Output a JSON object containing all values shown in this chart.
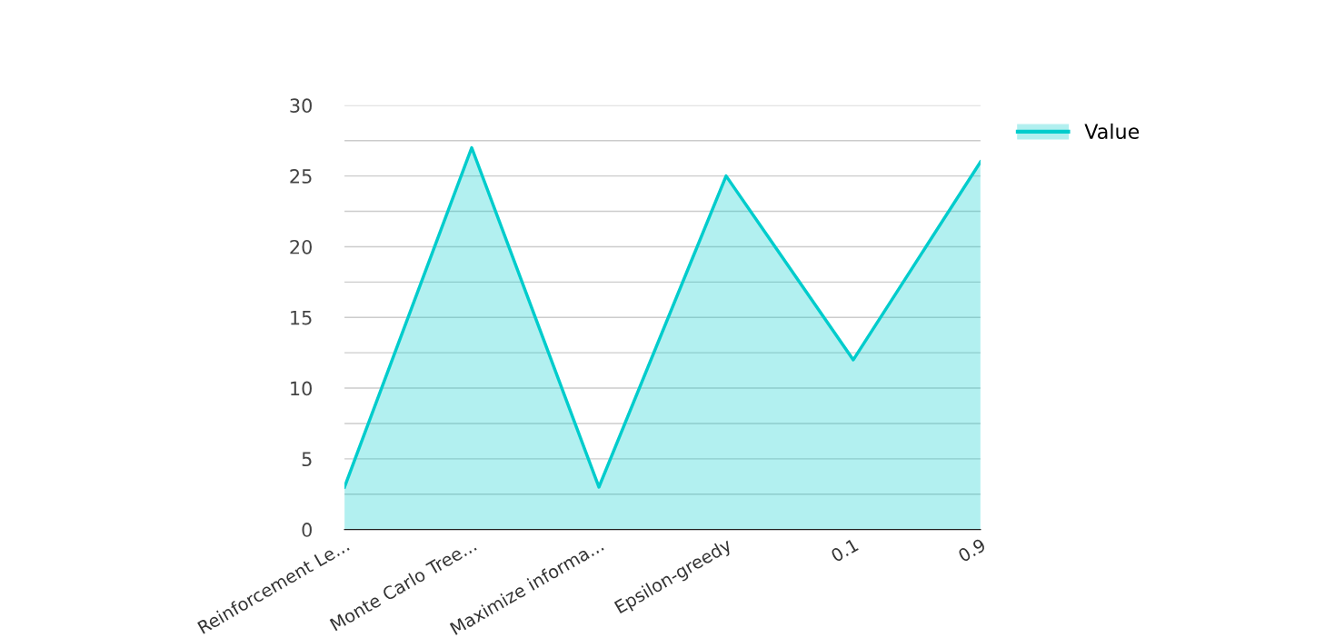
{
  "chart_data": {
    "type": "area",
    "categories": [
      "Reinforcement Le...",
      "Monte Carlo Tree...",
      "Maximize informa...",
      "Epsilon-greedy",
      "0.1",
      "0.9"
    ],
    "series": [
      {
        "name": "Value",
        "color": "#00cccc",
        "values": [
          3,
          27,
          3,
          25,
          12,
          26
        ]
      }
    ],
    "ylim": [
      0,
      30
    ],
    "yticks": [
      0,
      {
        "value": 2.5,
        "label": null
      },
      5,
      {
        "value": 7.5,
        "label": null
      },
      10,
      {
        "value": 12.5,
        "label": null
      },
      15,
      {
        "value": 17.5,
        "label": null
      },
      20,
      {
        "value": 22.5,
        "label": null
      },
      25,
      {
        "value": 27.5,
        "label": null
      },
      30
    ],
    "grid": "y",
    "legend": "top right",
    "marker": "none",
    "line_style": "solid"
  }
}
